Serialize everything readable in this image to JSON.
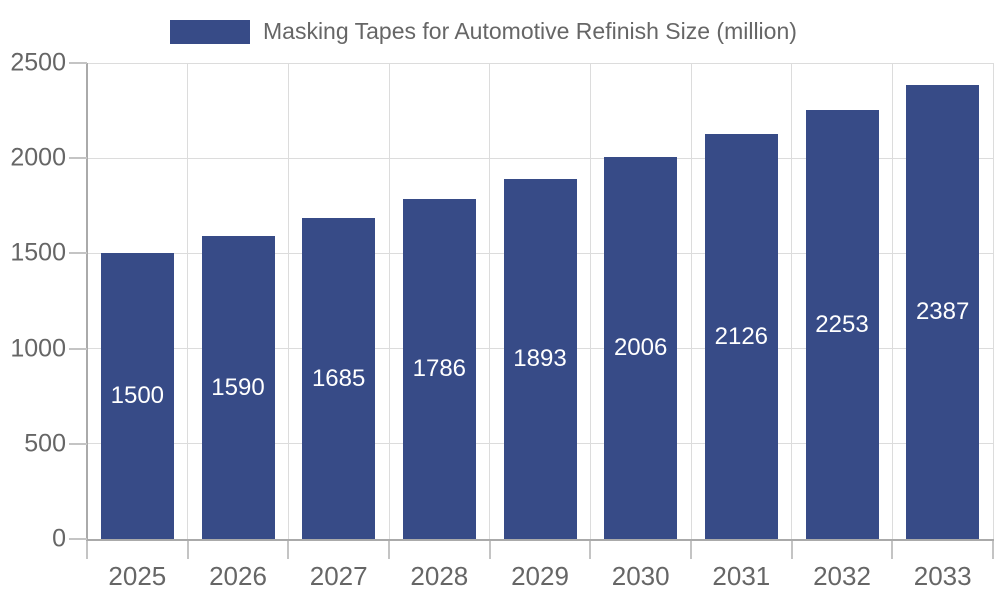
{
  "legend": {
    "label": "Masking Tapes for Automotive Refinish Size (million)"
  },
  "chart_data": {
    "type": "bar",
    "title": "Masking Tapes for Automotive Refinish Size (million)",
    "categories": [
      "2025",
      "2026",
      "2027",
      "2028",
      "2029",
      "2030",
      "2031",
      "2032",
      "2033"
    ],
    "values": [
      1500,
      1590,
      1685,
      1786,
      1893,
      2006,
      2126,
      2253,
      2387
    ],
    "xlabel": "",
    "ylabel": "",
    "ylim": [
      0,
      2500
    ],
    "yticks": [
      0,
      500,
      1000,
      1500,
      2000,
      2500
    ],
    "grid": true,
    "legend_position": "top-center",
    "colors": {
      "bar": "#374B87",
      "value_label": "#ffffff",
      "axis_line": "#aaaaaa",
      "tick_line": "#c4c4c4",
      "grid_line": "#dcdcdc",
      "text": "#666666"
    }
  }
}
